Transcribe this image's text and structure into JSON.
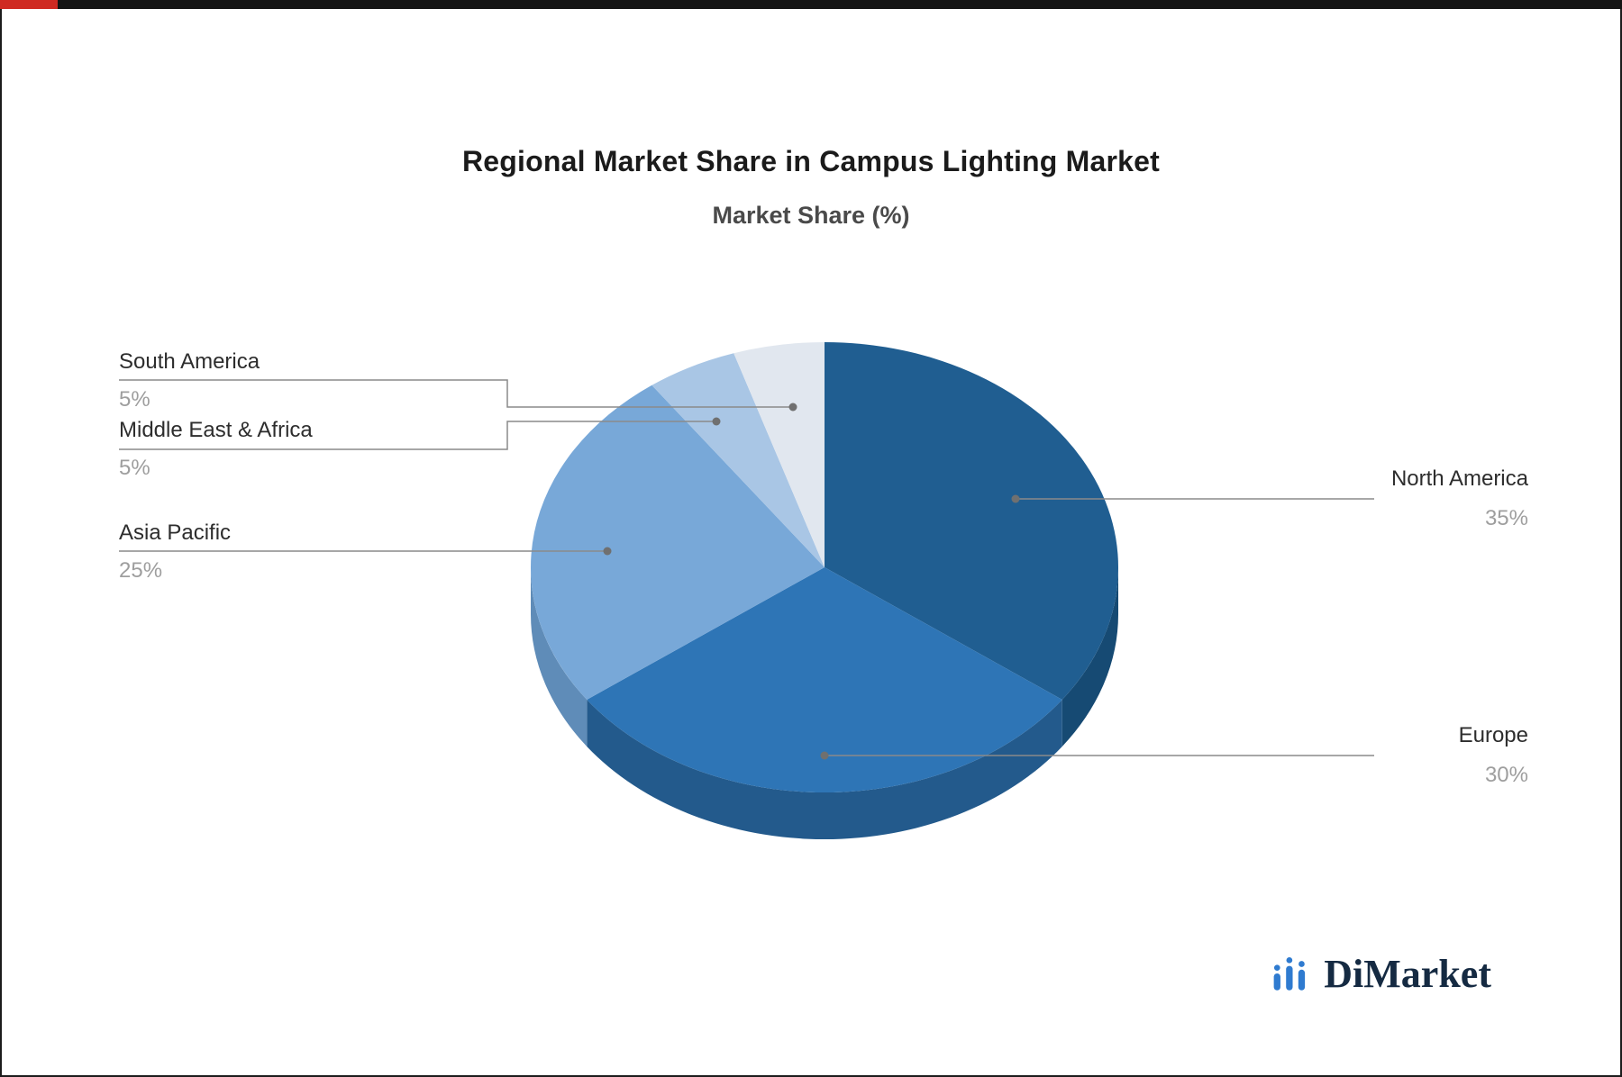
{
  "brand": {
    "name": "DiMarket",
    "accent_color": "#2f7bd0",
    "text_color": "#152a42"
  },
  "chart_data": {
    "type": "pie",
    "style": "3d",
    "title": "Regional Market Share in Campus Lighting Market",
    "subtitle": "Market Share (%)",
    "unit": "%",
    "start_angle_deg": 0,
    "direction": "clockwise",
    "legend_position": "none",
    "label_text_color": "#2d2d2d",
    "label_value_color": "#9e9e9e",
    "leader_line_color": "#8a8a8a",
    "slices": [
      {
        "label": "North America",
        "value": 35,
        "value_label": "35%",
        "color": "#205e91",
        "side_color": "#164a73"
      },
      {
        "label": "Europe",
        "value": 30,
        "value_label": "30%",
        "color": "#2e75b6",
        "side_color": "#235a8c"
      },
      {
        "label": "Asia Pacific",
        "value": 25,
        "value_label": "25%",
        "color": "#78a8d8",
        "side_color": "#5f8cb8"
      },
      {
        "label": "Middle East & Africa",
        "value": 5,
        "value_label": "5%",
        "color": "#a9c6e5",
        "side_color": "#88a6c6"
      },
      {
        "label": "South America",
        "value": 5,
        "value_label": "5%",
        "color": "#e1e7ef",
        "side_color": "#c3cdd9"
      }
    ]
  }
}
